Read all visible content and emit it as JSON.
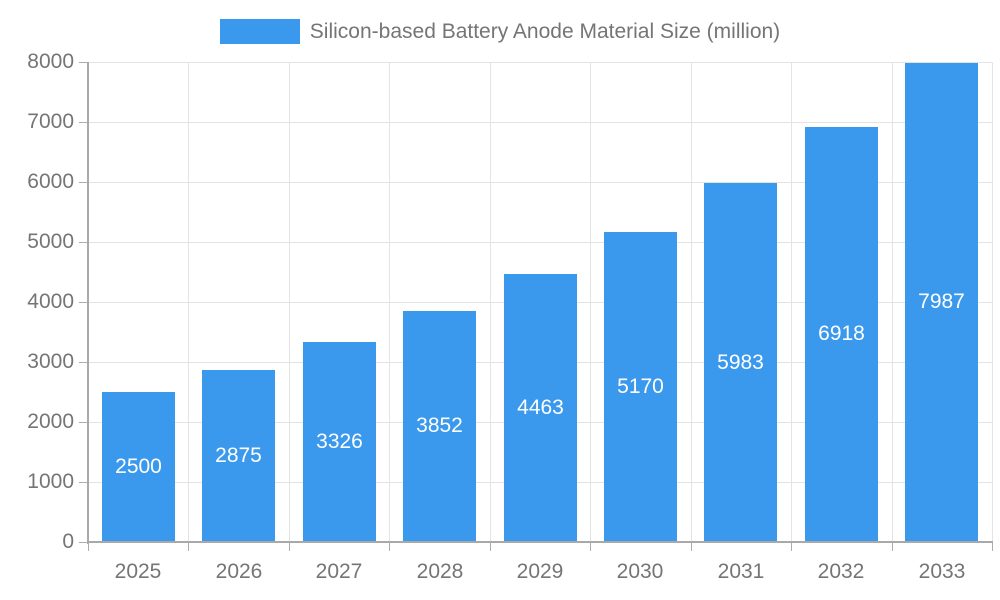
{
  "legend": {
    "label": "Silicon-based Battery Anode Material Size (million)"
  },
  "colors": {
    "bar": "#3A99EC",
    "axis_line": "#A9A9A9",
    "grid_line": "#E4E4E4",
    "tick": "#ADADAD",
    "axis_text": "#757575",
    "value_text": "#FFFFFF",
    "background": "#FFFFFF"
  },
  "chart_data": {
    "type": "bar",
    "title": "Silicon-based Battery Anode Material Size (million)",
    "categories": [
      "2025",
      "2026",
      "2027",
      "2028",
      "2029",
      "2030",
      "2031",
      "2032",
      "2033"
    ],
    "values": [
      2500,
      2875,
      3326,
      3852,
      4463,
      5170,
      5983,
      6918,
      7987
    ],
    "series": [
      {
        "name": "Silicon-based Battery Anode Material Size (million)",
        "values": [
          2500,
          2875,
          3326,
          3852,
          4463,
          5170,
          5983,
          6918,
          7987
        ]
      }
    ],
    "xlabel": "",
    "ylabel": "",
    "ylim": [
      0,
      8000
    ],
    "ytick_interval": 1000,
    "ytick_labels": [
      "0",
      "1000",
      "2000",
      "3000",
      "4000",
      "5000",
      "6000",
      "7000",
      "8000"
    ],
    "grid": true,
    "vertical_grid": true,
    "legend_position": "top-center",
    "value_label_position": "inside-center"
  }
}
